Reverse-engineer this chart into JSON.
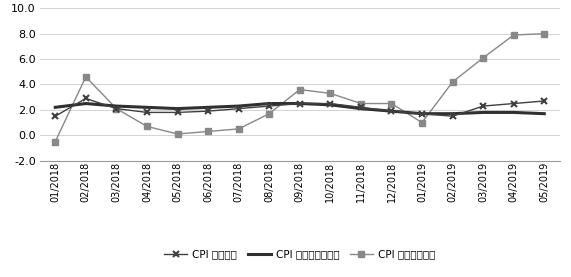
{
  "x_labels": [
    "01/2018",
    "02/2018",
    "03/2018",
    "04/2018",
    "05/2018",
    "06/2018",
    "07/2018",
    "08/2018",
    "09/2018",
    "10/2018",
    "11/2018",
    "12/2018",
    "01/2019",
    "02/2019",
    "03/2019",
    "04/2019",
    "05/2019"
  ],
  "cpi": [
    1.5,
    2.9,
    2.1,
    1.8,
    1.8,
    1.9,
    2.1,
    2.3,
    2.5,
    2.5,
    2.2,
    1.9,
    1.7,
    1.5,
    2.3,
    2.5,
    2.7
  ],
  "cpi_non_food": [
    2.2,
    2.5,
    2.3,
    2.2,
    2.1,
    2.2,
    2.3,
    2.5,
    2.5,
    2.4,
    2.1,
    1.9,
    1.7,
    1.7,
    1.8,
    1.8,
    1.7
  ],
  "cpi_food": [
    -0.5,
    4.6,
    2.1,
    0.7,
    0.1,
    0.3,
    0.5,
    1.7,
    3.6,
    3.3,
    2.5,
    2.5,
    1.0,
    4.2,
    6.1,
    7.9,
    8.0
  ],
  "cpi_color": "#404040",
  "cpi_non_food_color": "#303030",
  "cpi_food_color": "#888888",
  "ylim": [
    -2.0,
    10.0
  ],
  "yticks": [
    -2.0,
    0.0,
    2.0,
    4.0,
    6.0,
    8.0,
    10.0
  ],
  "legend_cpi": "CPI 同比增速",
  "legend_non_food": "CPI 非食品同比增速",
  "legend_food": "CPI 食品同比增速",
  "background_color": "#ffffff"
}
